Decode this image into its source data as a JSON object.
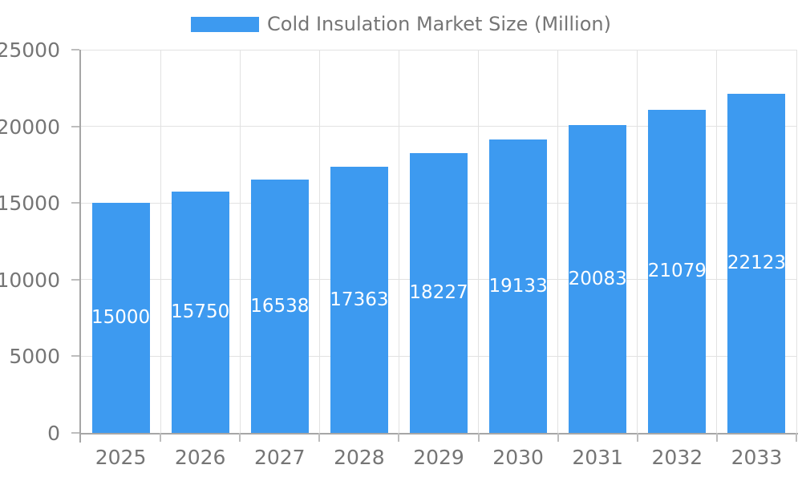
{
  "legend": {
    "swatch_color": "#3d9af0"
  },
  "chart_data": {
    "type": "bar",
    "title": "Cold Insulation Market Size (Million)",
    "categories": [
      "2025",
      "2026",
      "2027",
      "2028",
      "2029",
      "2030",
      "2031",
      "2032",
      "2033"
    ],
    "values": [
      15000,
      15750,
      16538,
      17363,
      18227,
      19133,
      20083,
      21079,
      22123
    ],
    "series": [
      {
        "name": "Cold Insulation Market Size (Million)",
        "values": [
          15000,
          15750,
          16538,
          17363,
          18227,
          19133,
          20083,
          21079,
          22123
        ]
      }
    ],
    "xlabel": "",
    "ylabel": "",
    "ylim": [
      0,
      25000
    ],
    "yticks": [
      0,
      5000,
      10000,
      15000,
      20000,
      25000
    ],
    "grid": true,
    "legend_position": "top-center",
    "bar_color": "#3d9af0",
    "value_label_color": "#ffffff",
    "axis_text_color": "#757575",
    "gridline_color": "#e2e2e2",
    "axis_line_color": "#a6a6a6"
  }
}
